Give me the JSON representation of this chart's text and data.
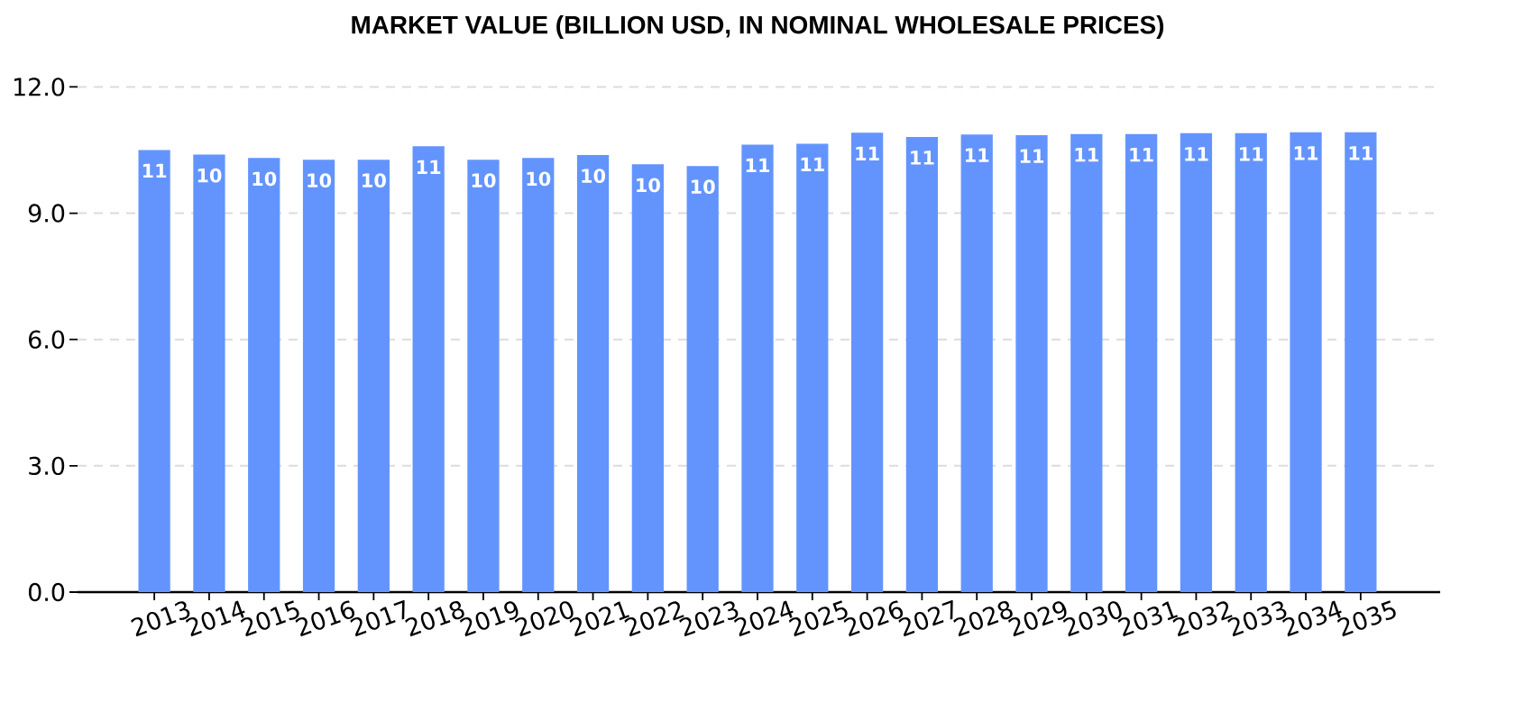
{
  "chart_data": {
    "type": "bar",
    "title": "MARKET VALUE (BILLION USD, IN NOMINAL WHOLESALE PRICES)",
    "categories": [
      "2013",
      "2014",
      "2015",
      "2016",
      "2017",
      "2018",
      "2019",
      "2020",
      "2021",
      "2022",
      "2023",
      "2024",
      "2025",
      "2026",
      "2027",
      "2028",
      "2029",
      "2030",
      "2031",
      "2032",
      "2033",
      "2034",
      "2035"
    ],
    "values": [
      10.5,
      10.39,
      10.31,
      10.27,
      10.27,
      10.59,
      10.27,
      10.31,
      10.38,
      10.16,
      10.12,
      10.63,
      10.65,
      10.91,
      10.81,
      10.87,
      10.85,
      10.88,
      10.88,
      10.9,
      10.9,
      10.92,
      10.92
    ],
    "value_labels": [
      "11",
      "10",
      "10",
      "10",
      "10",
      "11",
      "10",
      "10",
      "10",
      "10",
      "10",
      "11",
      "11",
      "11",
      "11",
      "11",
      "11",
      "11",
      "11",
      "11",
      "11",
      "11",
      "11"
    ],
    "color": "#6394fe",
    "ylim": [
      0,
      12
    ],
    "yticks": [
      {
        "value": 0,
        "label": "0.0"
      },
      {
        "value": 3,
        "label": "3.0"
      },
      {
        "value": 6,
        "label": "6.0"
      },
      {
        "value": 9,
        "label": "9.0"
      },
      {
        "value": 12,
        "label": "12.0"
      }
    ],
    "grid": "y"
  }
}
